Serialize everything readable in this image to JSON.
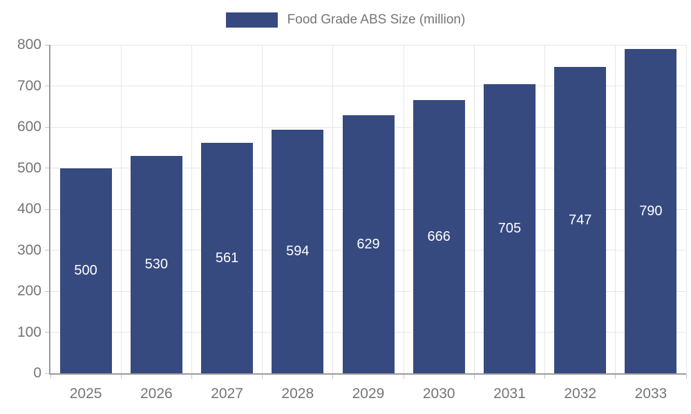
{
  "chart_data": {
    "type": "bar",
    "title": "Food Grade ABS Size (million)",
    "series": [
      {
        "name": "Food Grade ABS Size (million)",
        "values": [
          500,
          530,
          561,
          594,
          629,
          666,
          705,
          747,
          790
        ]
      }
    ],
    "categories": [
      "2025",
      "2026",
      "2027",
      "2028",
      "2029",
      "2030",
      "2031",
      "2032",
      "2033"
    ],
    "xlabel": "",
    "ylabel": "",
    "ylim": [
      0,
      800
    ],
    "yticks": [
      0,
      100,
      200,
      300,
      400,
      500,
      600,
      700,
      800
    ],
    "grid": true,
    "legend_position": "top-center",
    "bar_value_labels_shown": true,
    "colors": {
      "bar": "#374a80",
      "bar_value_label": "#ffffff",
      "axis_text": "#757575",
      "legend_text": "#757575",
      "gridline": "#e6e6e6",
      "axis_line": "#9a9a9a",
      "background": "#ffffff"
    }
  }
}
